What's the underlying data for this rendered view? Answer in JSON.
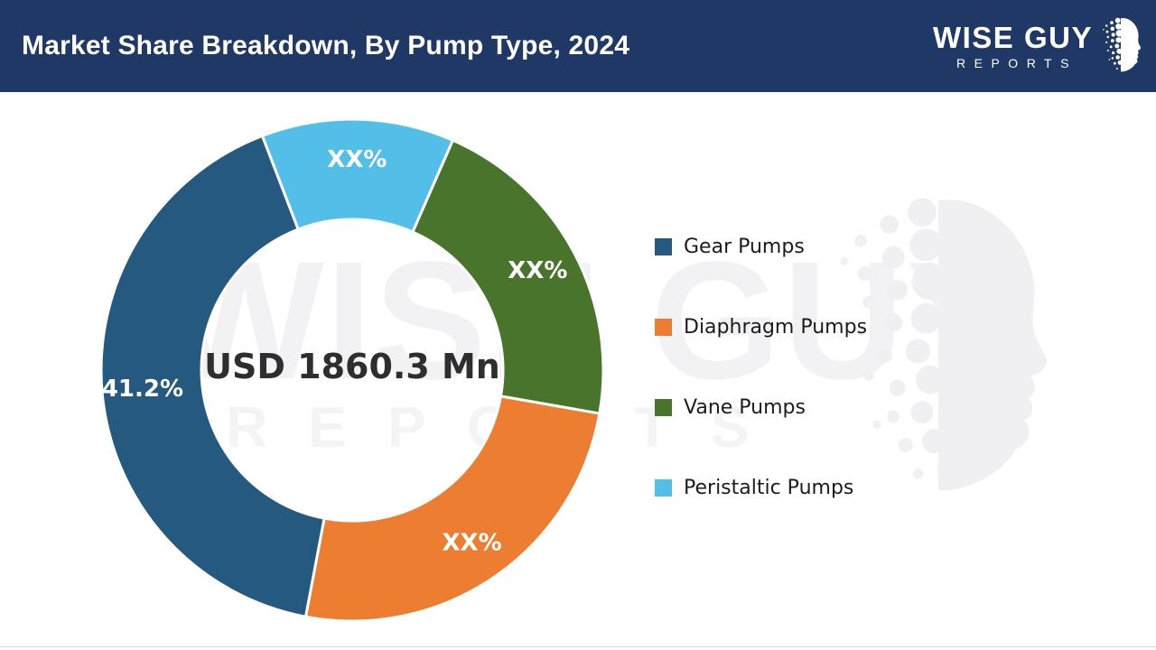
{
  "header": {
    "title": "Market Share Breakdown, By Pump Type, 2024",
    "logo": {
      "line1": "WISE GUY",
      "line2": "REPORTS"
    }
  },
  "watermark": {
    "line1": "WISE GUY",
    "line2": "REPORTS"
  },
  "chart_data": {
    "type": "pie",
    "subtype": "donut",
    "title": "Market Share Breakdown, By Pump Type, 2024",
    "center_label": "USD 1860.3 Mn",
    "start_angle_deg": -21,
    "segments": [
      {
        "name": "Peristaltic Pumps",
        "value": 12.4,
        "label": "XX%",
        "color": "#53BFE8"
      },
      {
        "name": "Vane Pumps",
        "value": 21.2,
        "label": "XX%",
        "color": "#48742C"
      },
      {
        "name": "Diaphragm Pumps",
        "value": 25.2,
        "label": "XX%",
        "color": "#ED7D31"
      },
      {
        "name": "Gear Pumps",
        "value": 41.2,
        "label": "41.2%",
        "color": "#265980"
      }
    ],
    "legend": [
      "Gear Pumps",
      "Diaphragm Pumps",
      "Vane Pumps",
      "Peristaltic Pumps"
    ],
    "legend_position": "right"
  },
  "colors": {
    "header_background": "#1F3865",
    "center_text": "#2E2E2E",
    "watermark": "#F2F2F5",
    "legend_text": "#1C1C1C",
    "bottom_rule": "#D9D9D9"
  }
}
